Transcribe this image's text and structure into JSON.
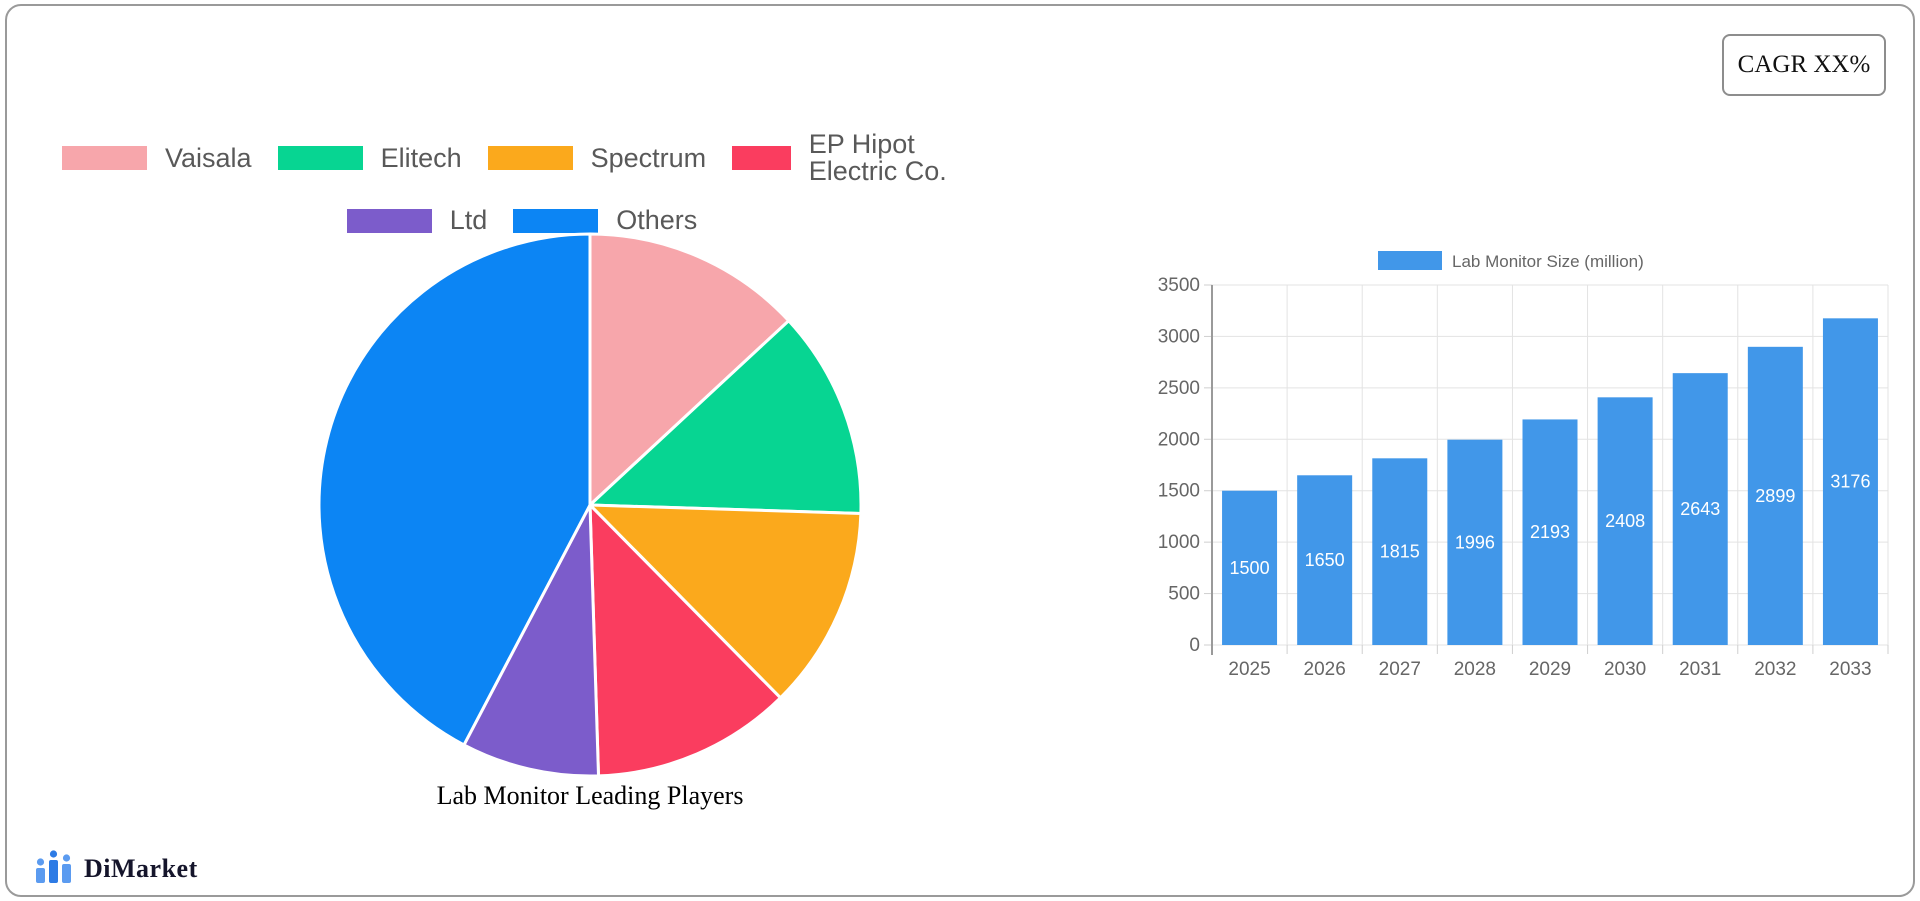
{
  "header": {
    "cagr_label": "CAGR XX%"
  },
  "footer": {
    "brand": "DiMarket",
    "brand_icon_colors": [
      "#5B9BF0",
      "#2D7BE5",
      "#5B9BF0"
    ]
  },
  "chart_data": [
    {
      "type": "pie",
      "title": "Lab Monitor Leading Players",
      "legend_position": "top",
      "start_angle_deg": 0,
      "direction": "clockwise",
      "slice_border_color": "#FFFFFF",
      "slices": [
        {
          "label": "Vaisala",
          "value": 13.1,
          "color": "#F7A6AB"
        },
        {
          "label": "Elitech",
          "value": 12.4,
          "color": "#07D592"
        },
        {
          "label": "Spectrum",
          "value": 12.1,
          "color": "#FBA91C"
        },
        {
          "label": "EP Hipot Electric Co.",
          "value": 11.9,
          "color": "#FA3D5F"
        },
        {
          "label": "Ltd",
          "value": 8.2,
          "color": "#7C5CCB"
        },
        {
          "label": "Others",
          "value": 42.3,
          "color": "#0C85F4"
        }
      ]
    },
    {
      "type": "bar",
      "legend": "Lab Monitor Size (million)",
      "categories": [
        "2025",
        "2026",
        "2027",
        "2028",
        "2029",
        "2030",
        "2031",
        "2032",
        "2033"
      ],
      "values": [
        1500,
        1650,
        1815,
        1996,
        2193,
        2408,
        2643,
        2899,
        3176
      ],
      "ylim": [
        0,
        3500
      ],
      "ytick_step": 500,
      "grid": true,
      "bar_color": "#4197E9",
      "value_label_color": "#FFFFFF",
      "axis_color": "#9a9a9a",
      "grid_color": "#E3E3E3",
      "tick_color": "#CFCFCF",
      "tick_label_color": "#666666",
      "legend_label_color": "#666666"
    }
  ]
}
